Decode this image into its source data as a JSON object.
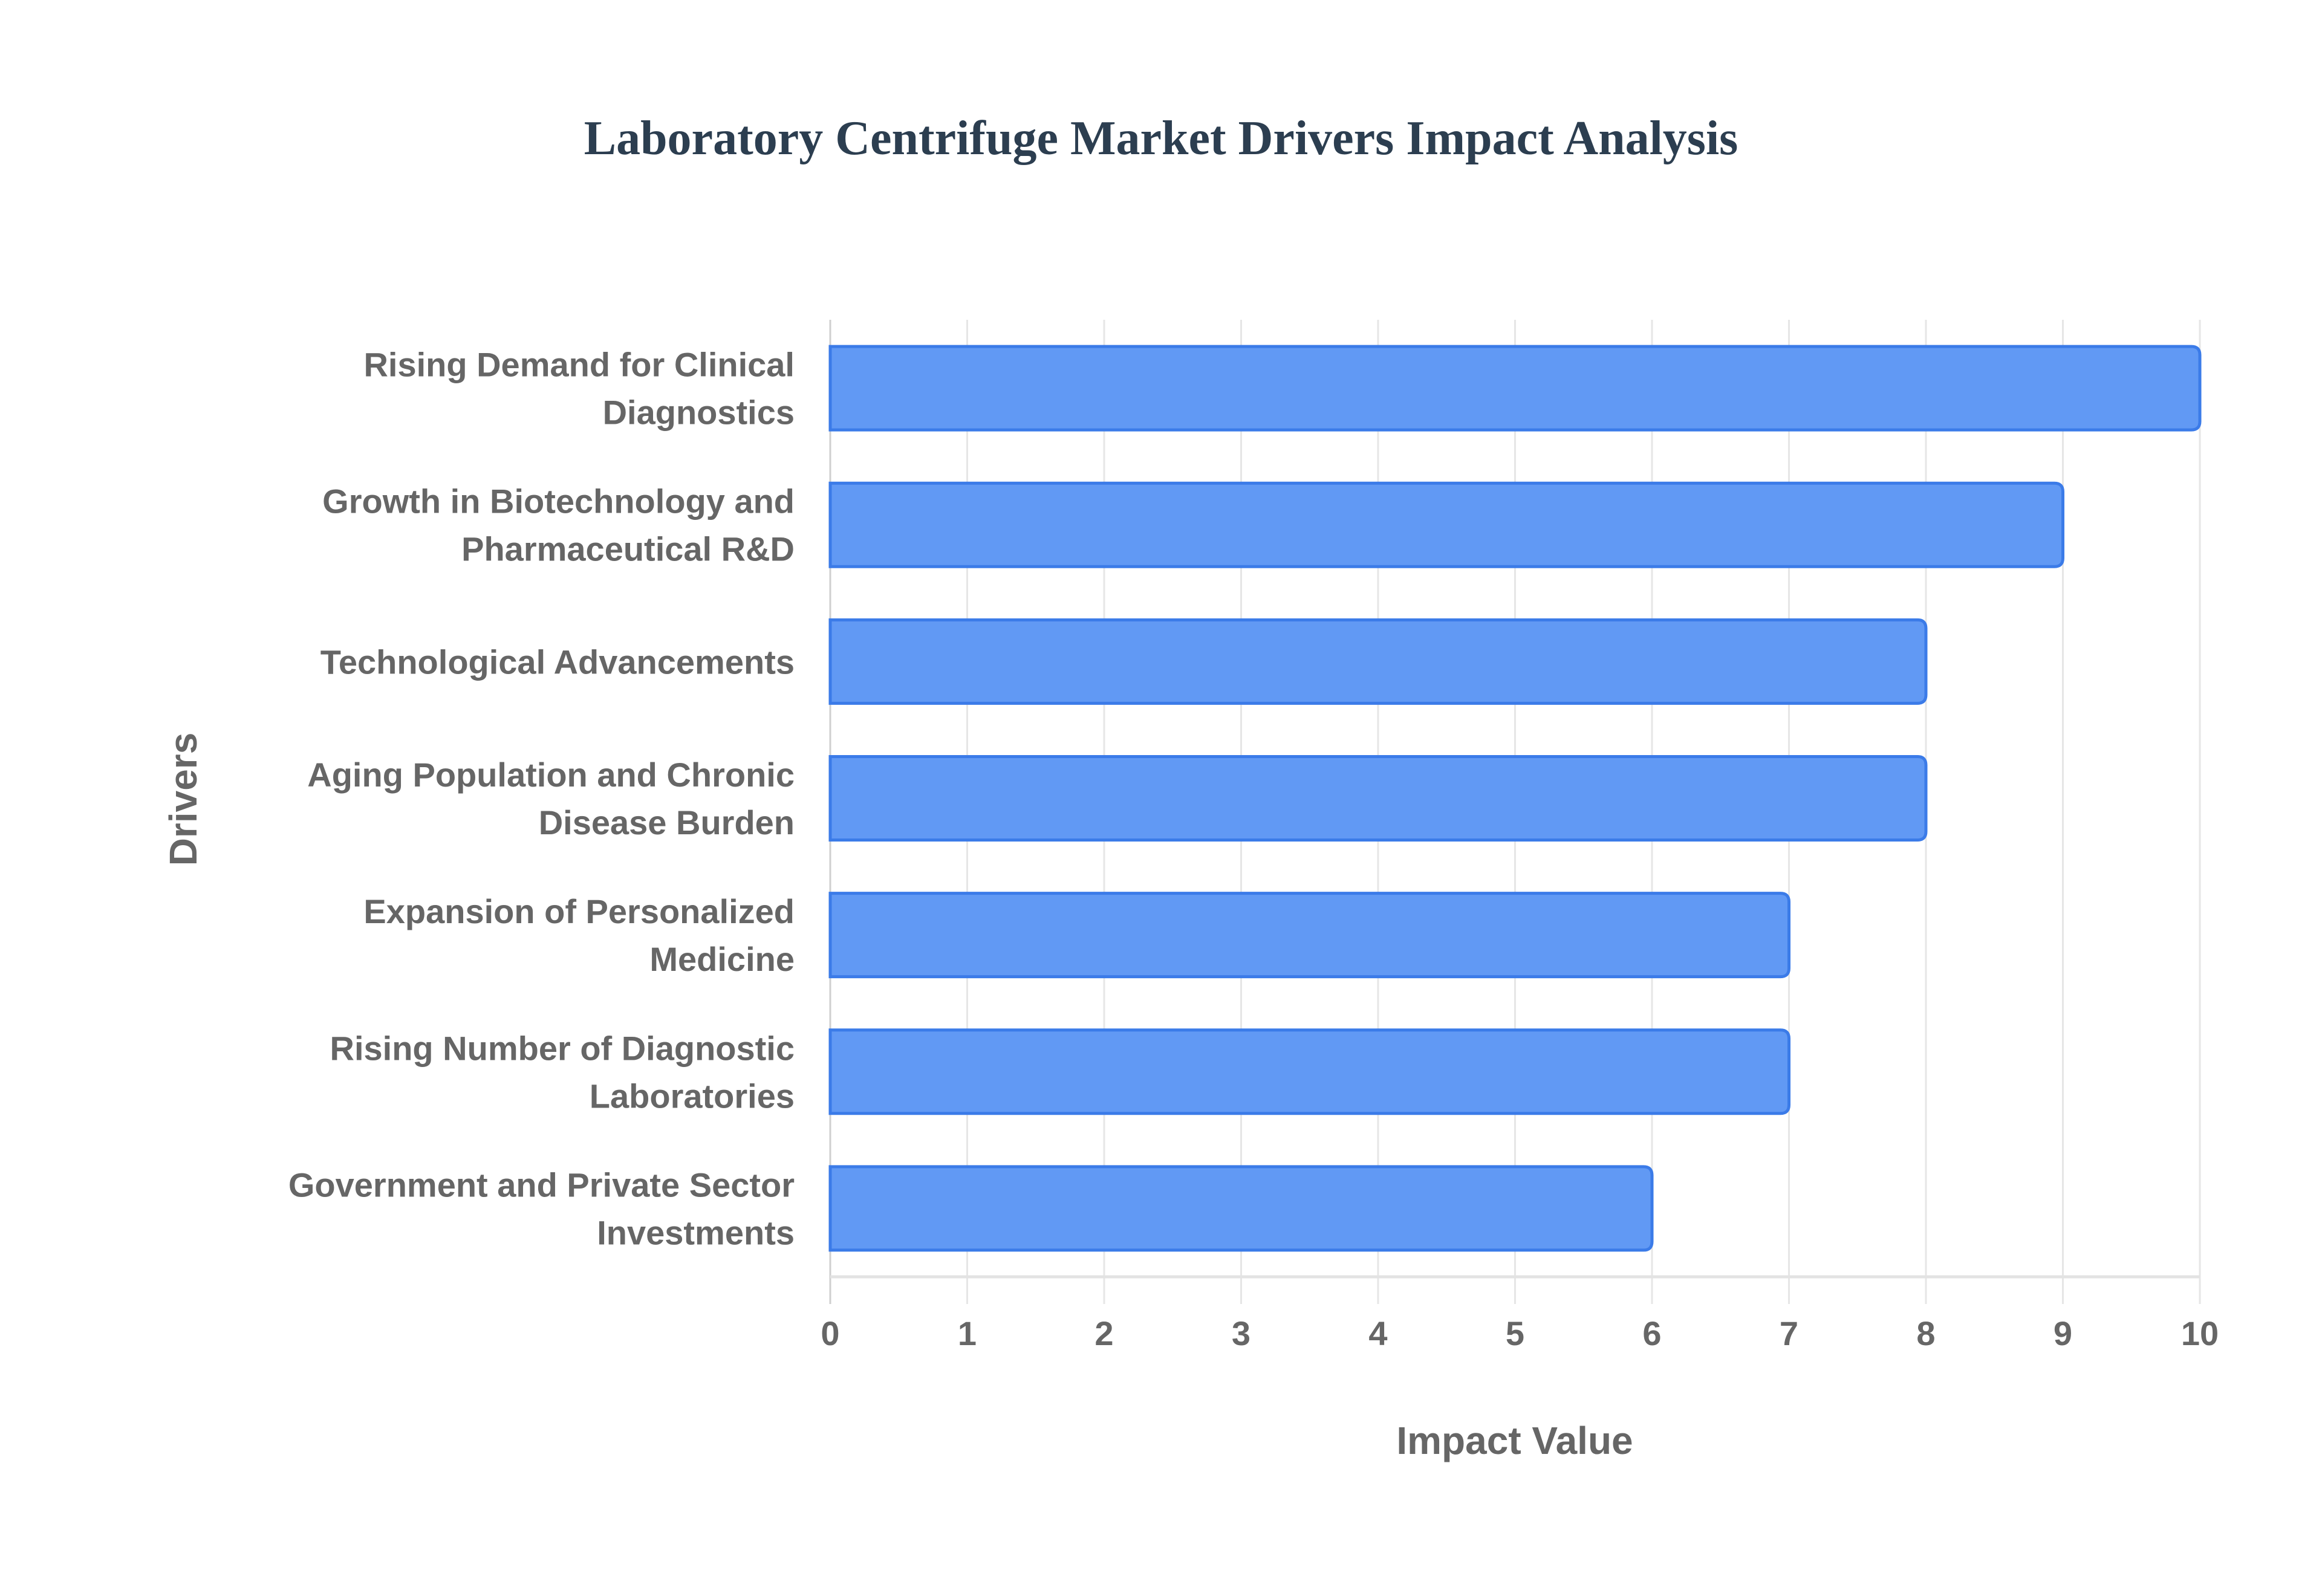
{
  "chart_data": {
    "type": "bar",
    "orientation": "horizontal",
    "title": "Laboratory Centrifuge Market Drivers Impact Analysis",
    "xlabel": "Impact Value",
    "ylabel": "Drivers",
    "xlim": [
      0,
      10
    ],
    "xticks": [
      "0",
      "1",
      "2",
      "3",
      "4",
      "5",
      "6",
      "7",
      "8",
      "9",
      "10"
    ],
    "grid": true,
    "bar_color": "#6199f4",
    "bar_border_color": "#3b7be8",
    "categories": [
      [
        "Rising Demand for Clinical",
        "Diagnostics"
      ],
      [
        "Growth in Biotechnology and",
        "Pharmaceutical R&D"
      ],
      [
        "Technological Advancements"
      ],
      [
        "Aging Population and Chronic",
        "Disease Burden"
      ],
      [
        "Expansion of Personalized",
        "Medicine"
      ],
      [
        "Rising Number of Diagnostic",
        "Laboratories"
      ],
      [
        "Government and Private Sector",
        "Investments"
      ]
    ],
    "values": [
      10,
      9,
      8,
      8,
      7,
      7,
      6
    ]
  }
}
